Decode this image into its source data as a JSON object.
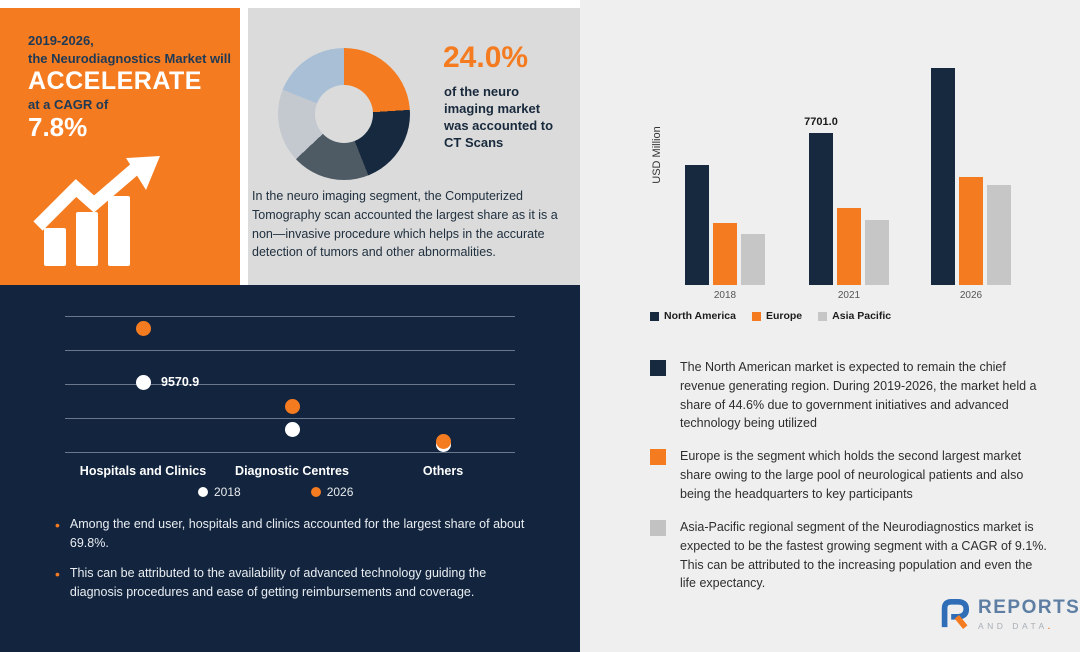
{
  "palette": {
    "orange": "#F47B20",
    "navy": "#16293F",
    "panel_navy": "#13253E",
    "gray_box": "#DBDBDB",
    "right_bg": "#EFEFEF"
  },
  "intro": {
    "line1": "2019-2026,",
    "line2": "the Neurodiagnostics Market will",
    "accelerate": "ACCELERATE",
    "line3": "at a CAGR of",
    "cagr": "7.8%"
  },
  "ct_section": {
    "stat": "24.0%",
    "caption": "of the neuro imaging market was accounted to CT Scans",
    "body": "In the neuro imaging segment, the Computerized Tomography scan accounted the largest share  as it is a non—invasive procedure which helps in the accurate detection of tumors and other abnormalities."
  },
  "end_user": {
    "bullets": [
      "Among the end user, hospitals and clinics accounted for the largest share of about 69.8%.",
      "This can be attributed to the availability of advanced technology guiding the diagnosis procedures and ease of getting reimbursements and coverage."
    ]
  },
  "regional": {
    "bullets": [
      {
        "color": "navy",
        "text": "The North American market  is expected to remain the chief revenue generating region. During 2019-2026, the market held a share of 44.6% due to government initiatives and advanced technology being utilized"
      },
      {
        "color": "orange",
        "text": "Europe is the segment which holds the second largest market share owing to the large pool of neurological patients and also being the headquarters to key participants"
      },
      {
        "color": "gray",
        "text": "Asia-Pacific regional segment of the Neurodiagnostics market is expected to be the fastest growing segment with a CAGR of 9.1%. This can be attributed to the increasing population and even the life expectancy."
      }
    ]
  },
  "logo": {
    "name": "REPORTS",
    "sub": "AND DATA",
    "dot": "."
  },
  "chart_data": [
    {
      "type": "pie",
      "subtype": "donut",
      "labels": [
        "CT Scans",
        "",
        "",
        "",
        ""
      ],
      "values": [
        24,
        20,
        19,
        18,
        19
      ],
      "colors": [
        "#F47B20",
        "#16293F",
        "#4E5A64",
        "#C4C9CF",
        "#A9BFD6"
      ],
      "annotation": "24.0% of the neuro imaging market was accounted to CT Scans"
    },
    {
      "type": "scatter",
      "subtype": "dot-plot",
      "categories": [
        "Hospitals and Clinics",
        "Diagnostic Centres",
        "Others"
      ],
      "series": [
        {
          "name": "2018",
          "color": "#FFFFFF",
          "values": [
            9570.9,
            6350,
            5250
          ]
        },
        {
          "name": "2026",
          "color": "#F47B20",
          "values": [
            13400,
            7900,
            5450
          ]
        }
      ],
      "data_label": {
        "category": "Hospitals and Clinics",
        "series": "2018",
        "text": "9570.9"
      },
      "legend": [
        "2018",
        "2026"
      ],
      "grid": true
    },
    {
      "type": "bar",
      "ylabel": "USD Million",
      "categories": [
        "2018",
        "2021",
        "2026"
      ],
      "series": [
        {
          "name": "North America",
          "color": "#16293F",
          "values": [
            6100,
            7701,
            11000
          ]
        },
        {
          "name": "Europe",
          "color": "#F47B20",
          "values": [
            3150,
            3900,
            5480
          ]
        },
        {
          "name": "Asia Pacific",
          "color": "#C6C6C6",
          "values": [
            2600,
            3300,
            5050
          ]
        }
      ],
      "data_label": {
        "category": "2021",
        "series": "North America",
        "text": "7701.0"
      },
      "ylim": [
        0,
        11500
      ],
      "legend_position": "bottom"
    }
  ]
}
